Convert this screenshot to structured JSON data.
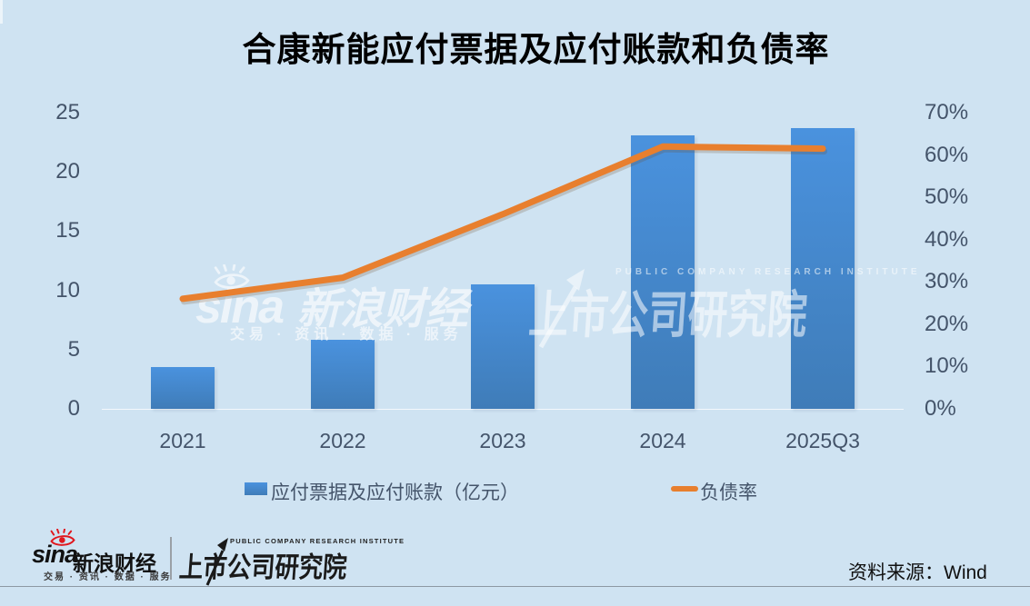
{
  "title": "合康新能应付票据及应付账款和负债率",
  "chart_data": {
    "type": "bar",
    "combo": "bar+line",
    "categories": [
      "2021",
      "2022",
      "2023",
      "2024",
      "2025Q3"
    ],
    "series": [
      {
        "name": "应付票据及应付账款（亿元）",
        "type": "bar",
        "axis": "left",
        "values": [
          3.5,
          5.8,
          10.5,
          23.1,
          23.7
        ],
        "color_top": "#4a92de",
        "color_bottom": "#3f7cb8"
      },
      {
        "name": "负债率",
        "type": "line",
        "axis": "right",
        "unit": "%",
        "values": [
          26,
          31,
          46,
          62,
          61.5
        ],
        "color": "#e87f2e"
      }
    ],
    "left_axis": {
      "min": 0,
      "max": 25,
      "ticks": [
        0,
        5,
        10,
        15,
        20,
        25
      ]
    },
    "right_axis": {
      "min": 0,
      "max": 70,
      "ticks": [
        0,
        10,
        20,
        30,
        40,
        50,
        60,
        70
      ],
      "suffix": "%"
    },
    "legend_position": "bottom",
    "grid": false
  },
  "watermarks": {
    "sina_text": "sina",
    "sina_cn": "新浪财经",
    "sina_tagline": "交易 · 资讯 · 数据 · 服务",
    "pcri_en": "PUBLIC COMPANY RESEARCH INSTITUTE",
    "pcri_cn": "上市公司研究院"
  },
  "footer": {
    "sina_text": "sina",
    "sina_cn": "新浪财经",
    "sina_tagline": "交易 · 资讯 · 数据 · 服务",
    "pcri_en": "PUBLIC COMPANY RESEARCH INSTITUTE",
    "pcri_cn": "上市公司研究院",
    "source": "资料来源：Wind"
  },
  "colors": {
    "background": "#cfe3f2",
    "bar_top": "#4a92de",
    "bar_bottom": "#3f7cb8",
    "line": "#e87f2e",
    "axis_text": "#44546a",
    "sina_red": "#e0181f"
  }
}
